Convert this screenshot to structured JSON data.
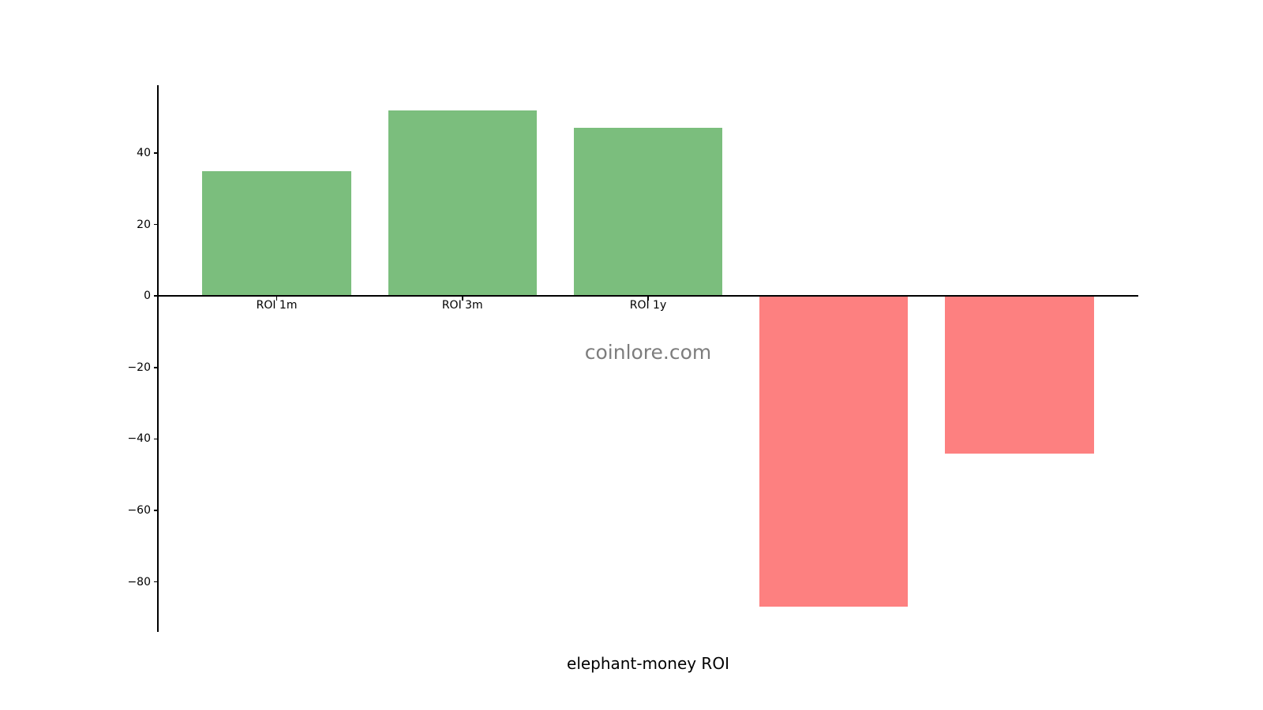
{
  "page": {
    "background": "#ffffff"
  },
  "watermark": {
    "text": "coinlore.com",
    "color": "#7d7d7d"
  },
  "chart_data": {
    "type": "bar",
    "title": "elephant-money ROI",
    "categories": [
      "ROI 1m",
      "ROI 3m",
      "ROI 1y",
      "",
      ""
    ],
    "values": [
      35,
      52,
      47,
      -87,
      -44
    ],
    "bar_colors": [
      "#7bbe7d",
      "#7bbe7d",
      "#7bbe7d",
      "#fd8080",
      "#fd8080"
    ],
    "positive_color": "#7bbe7d",
    "negative_color": "#fd8080",
    "axis_color": "#000000",
    "tick_label_color": "#000000",
    "ylim": [
      -94,
      59
    ],
    "yticks": [
      40,
      20,
      0,
      -20,
      -40,
      -60,
      -80
    ],
    "ytick_labels": [
      "40",
      "20",
      "0",
      "−20",
      "−40",
      "−60",
      "−80"
    ],
    "xlabel": "",
    "ylabel": "",
    "grid": false,
    "legend": "none",
    "background": "#ffffff"
  }
}
